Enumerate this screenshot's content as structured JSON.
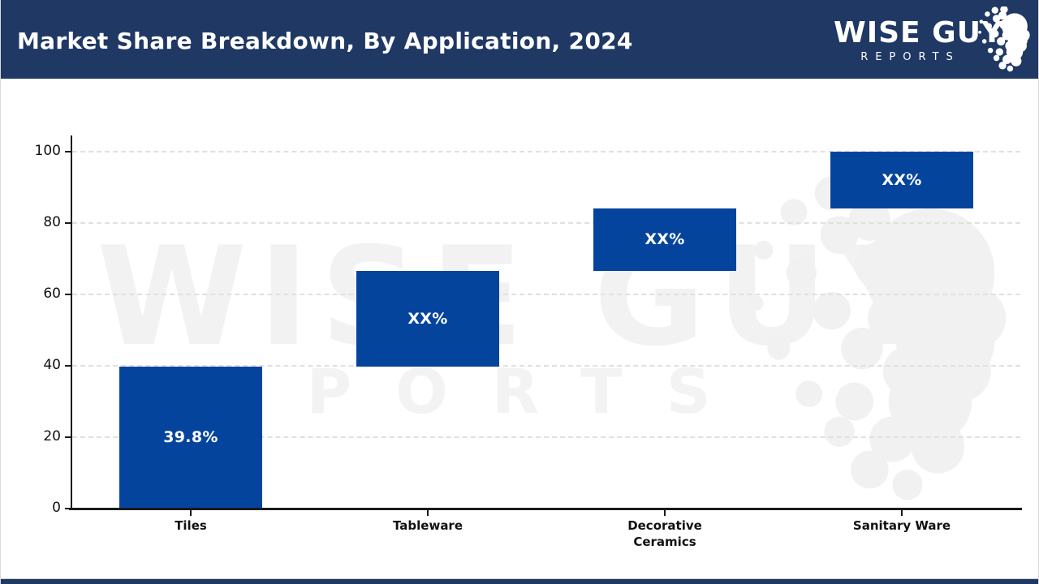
{
  "header": {
    "title": "Market Share Breakdown, By Application, 2024",
    "bg_color": "#1f3864",
    "logo": {
      "line1": "WISE GUY",
      "line2": "REPORTS"
    }
  },
  "watermark": {
    "line1": "WISE GUY",
    "line2": "REPORTS"
  },
  "footer": {
    "bg_color": "#1f3864"
  },
  "chart_data": {
    "type": "bar",
    "subtype": "waterfall-stacked",
    "title": "Market Share Breakdown, By Application, 2024",
    "categories": [
      "Tiles",
      "Tableware",
      "Decorative Ceramics",
      "Sanitary Ware"
    ],
    "series": [
      {
        "name": "Market share (%)",
        "segments": [
          {
            "category": "Tiles",
            "start": 0,
            "end": 39.8,
            "value": 39.8,
            "label": "39.8%"
          },
          {
            "category": "Tableware",
            "start": 39.8,
            "end": 66.6,
            "value": 26.8,
            "label": "XX%"
          },
          {
            "category": "Decorative Ceramics",
            "start": 66.6,
            "end": 84.1,
            "value": 17.5,
            "label": "XX%"
          },
          {
            "category": "Sanitary Ware",
            "start": 84.1,
            "end": 100,
            "value": 15.9,
            "label": "XX%"
          }
        ]
      }
    ],
    "xlabel": "",
    "ylabel": "",
    "ylim": [
      0,
      100
    ],
    "yticks": [
      0,
      20,
      40,
      60,
      80,
      100
    ],
    "grid": true,
    "grid_style": "dashed",
    "legend": "none",
    "bar_color": "#05449c",
    "bar_label_color": "#ffffff",
    "axis_color": "#1a1a1a",
    "grid_color": "#e0e0e0"
  }
}
